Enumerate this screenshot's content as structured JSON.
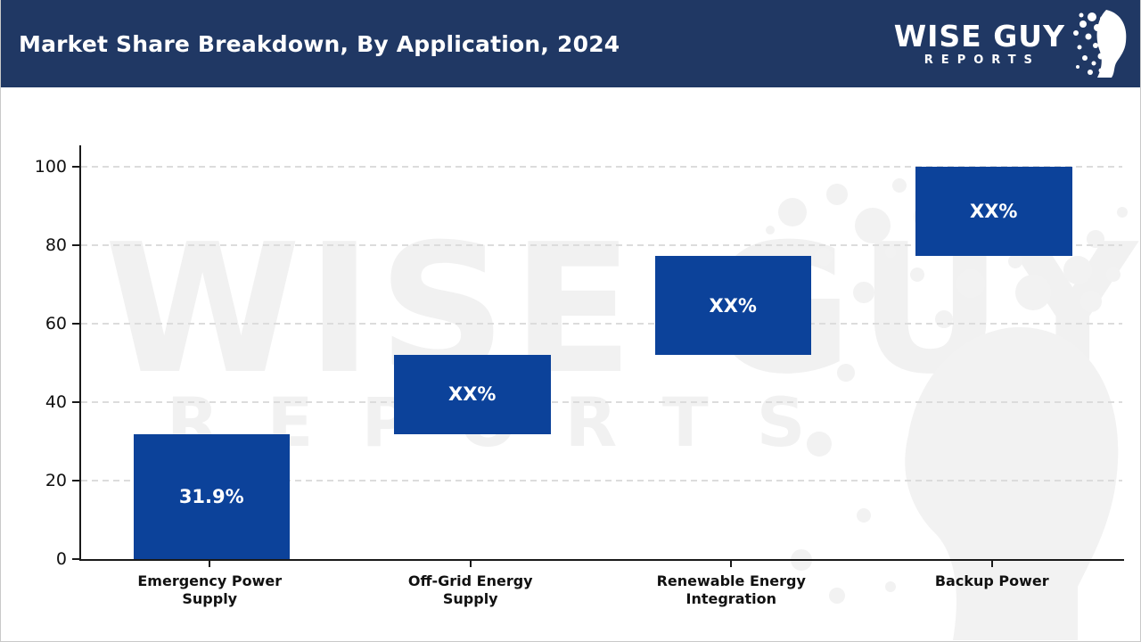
{
  "header": {
    "title": "Market Share Breakdown, By Application, 2024",
    "logo": {
      "wordmark": "WISE GUY",
      "subtext": "REPORTS"
    }
  },
  "watermark": {
    "wordmark": "WISE GUY",
    "subtext": "REPORTS"
  },
  "chart_data": {
    "type": "bar",
    "subtype": "floating-waterfall",
    "title": "Market Share Breakdown, By Application, 2024",
    "categories": [
      "Emergency Power Supply",
      "Off-Grid Energy Supply",
      "Renewable Energy Integration",
      "Backup Power"
    ],
    "bars": [
      {
        "category": "Emergency Power Supply",
        "start": 0,
        "end": 31.9,
        "label": "31.9%"
      },
      {
        "category": "Off-Grid Energy Supply",
        "start": 31.9,
        "end": 51.9,
        "label": "XX%"
      },
      {
        "category": "Renewable Energy Integration",
        "start": 51.9,
        "end": 77.2,
        "label": "XX%"
      },
      {
        "category": "Backup Power",
        "start": 77.2,
        "end": 100,
        "label": "XX%"
      }
    ],
    "ylim": [
      0,
      100
    ],
    "yticks": [
      0,
      20,
      40,
      60,
      80,
      100
    ],
    "xlabel": "",
    "ylabel": "",
    "grid": "horizontal-dashed",
    "legend": "none",
    "bar_color": "#0c429a",
    "bar_label_color": "#ffffff"
  },
  "colors": {
    "header_bg": "#203864",
    "bar_fill": "#0c429a",
    "gridline": "#dcdcdc",
    "axis": "#1a1a1a",
    "watermark": "#f1f1f1",
    "page_border": "#c9c9c9"
  }
}
